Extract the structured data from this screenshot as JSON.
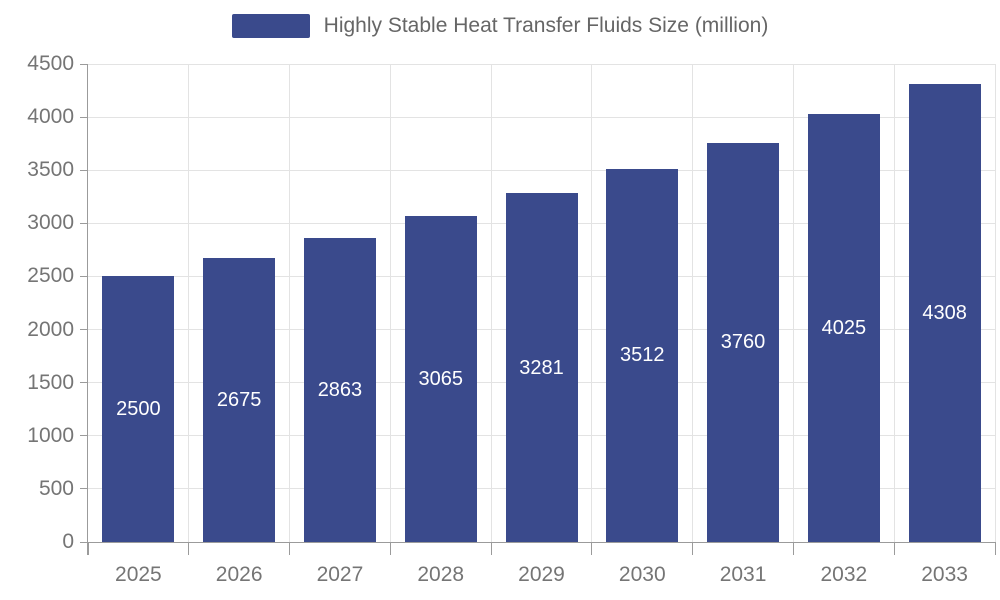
{
  "legend": {
    "label": "Highly Stable Heat Transfer Fluids Size (million)"
  },
  "colors": {
    "bar": "#3A4A8C",
    "grid": "#E3E3E3",
    "axis": "#9B9B9B",
    "tick_label": "#757575",
    "legend_text": "#666666",
    "bar_label": "#FFFFFF",
    "background": "#FFFFFF"
  },
  "chart_data": {
    "type": "bar",
    "title": "Highly Stable Heat Transfer Fluids Size (million)",
    "categories": [
      "2025",
      "2026",
      "2027",
      "2028",
      "2029",
      "2030",
      "2031",
      "2032",
      "2033"
    ],
    "values": [
      2500,
      2675,
      2863,
      3065,
      3281,
      3512,
      3760,
      4025,
      4308
    ],
    "xlabel": "",
    "ylabel": "",
    "ylim": [
      0,
      4500
    ],
    "ytick_step": 500,
    "grid": true,
    "vertical_grid": true,
    "legend_position": "top-center",
    "bar_label_position": "inside-middle"
  }
}
